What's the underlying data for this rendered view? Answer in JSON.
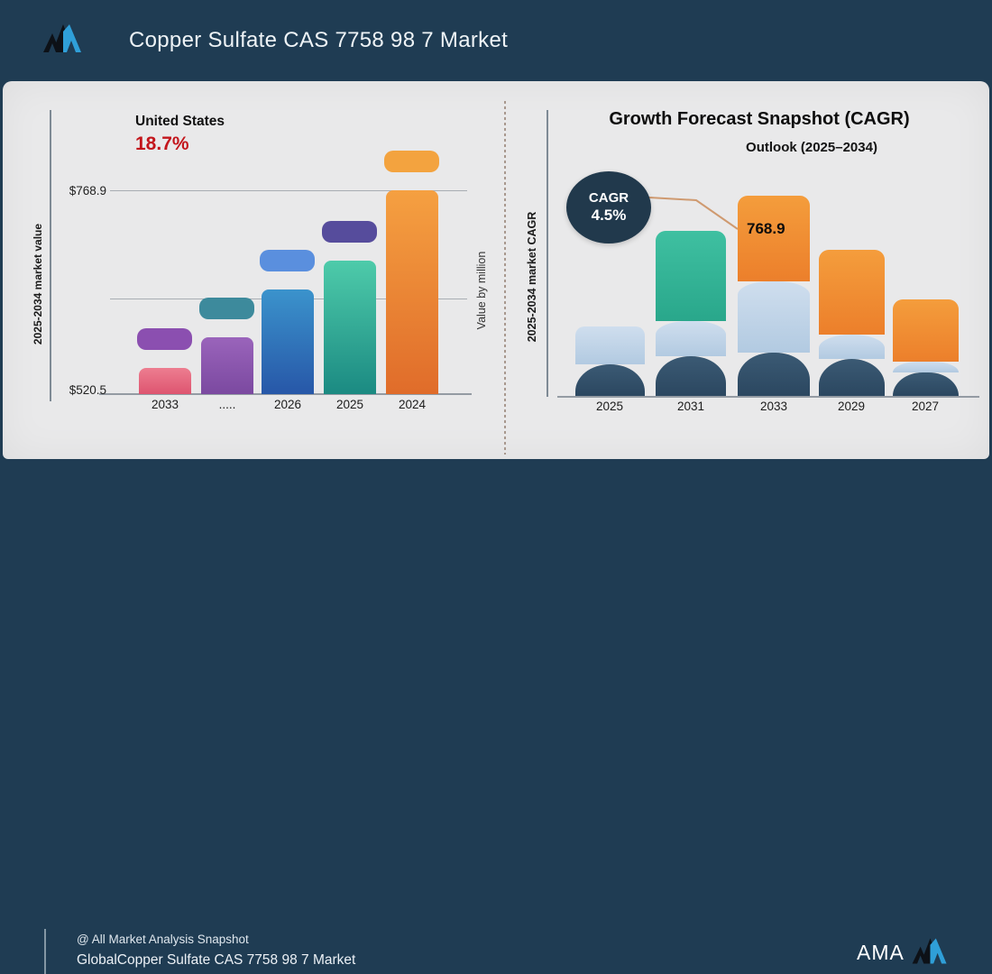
{
  "header": {
    "title": "Copper Sulfate CAS 7758 98 7 Market",
    "logo": "AMA-mountain-logo"
  },
  "footer": {
    "credit": "@ All Market Analysis Snapshot",
    "source": "GlobalCopper Sulfate CAS 7758 98 7 Market",
    "brand": "AMA",
    "logo": "AMA-mountain-logo"
  },
  "colors": {
    "header_bg": "#1f3c53",
    "panel_bg": "#e9e9ea",
    "accent_red": "#c3161c",
    "badge_navy": "#21394c",
    "logo_blue": "#2f9fd8",
    "logo_black": "#0d1117",
    "connector": "#cf9a70"
  },
  "chart_data": [
    {
      "type": "bar",
      "title": "United States",
      "highlight_value": "18.7%",
      "ylabel": "2025-2034 market value",
      "secondary_axis_label": "Value by million",
      "categories": [
        "2033",
        ".....",
        "2026",
        "2025",
        "2024"
      ],
      "values": [
        552,
        590,
        648,
        683,
        768.9
      ],
      "yticks": [
        {
          "label": "$768.9",
          "value": 768.9
        },
        {
          "label": "$520.5",
          "value": 520.5
        }
      ],
      "ylim": [
        520.5,
        790
      ],
      "grid": true,
      "legend": false,
      "bar_gradients": [
        [
          "#ed7d90",
          "#de5570"
        ],
        [
          "#9a64bb",
          "#7b49a0"
        ],
        [
          "#3b93cc",
          "#2757a8"
        ],
        [
          "#4ecbaa",
          "#1b8a82"
        ],
        [
          "#f5a041",
          "#e06c2a"
        ]
      ],
      "cap_colors": [
        "#8b4fb0",
        "#3d8a9c",
        "#5a8fde",
        "#564c9c",
        "#f3a33f"
      ]
    },
    {
      "type": "bar",
      "subtype": "stacked",
      "title": "Growth Forecast Snapshot (CAGR)",
      "subtitle": "Outlook (2025–2034)",
      "ylabel": "2025-2034 market CAGR",
      "badge": {
        "label": "CAGR",
        "value": "4.5%"
      },
      "annotation": {
        "text": "768.9",
        "category": "2033"
      },
      "categories": [
        "2025",
        "2031",
        "2033",
        "2029",
        "2027"
      ],
      "series": [
        {
          "name": "base",
          "values": [
            121,
            152,
            166,
            142,
            90
          ]
        },
        {
          "name": "mid",
          "values": [
            145,
            135,
            274,
            94,
            42
          ]
        },
        {
          "name": "top",
          "values": [
            0,
            346,
            329,
            326,
            239
          ]
        }
      ],
      "totals": [
        266,
        633,
        768.9,
        562,
        371
      ],
      "grid": false,
      "legend": false,
      "segment_colors": {
        "base": [
          "#3b5a74",
          "#2b4760"
        ],
        "mid": [
          "#cfdeee",
          "#b2cae1"
        ],
        "teal": [
          "#3fc0a1",
          "#29a78b"
        ],
        "orange": [
          "#f49d3c",
          "#ec7f2b"
        ]
      },
      "top_styles": [
        null,
        "teal",
        "orange",
        "orange",
        "orange"
      ]
    }
  ]
}
